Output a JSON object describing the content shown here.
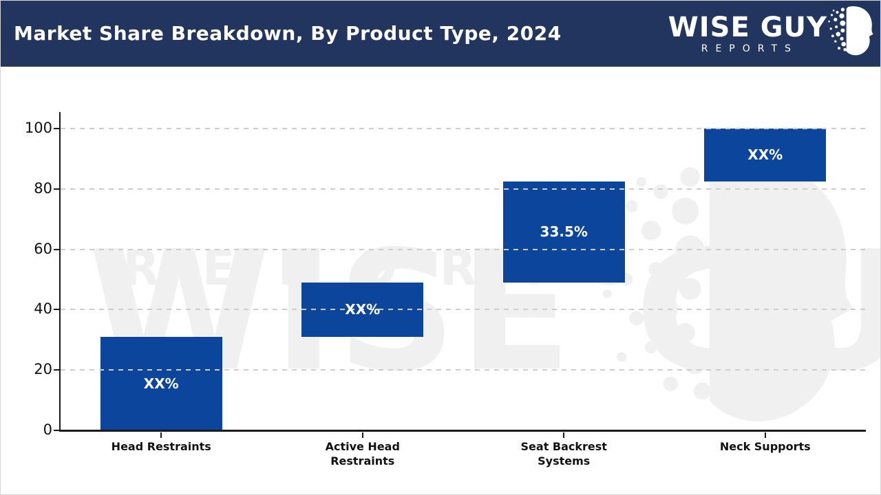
{
  "header": {
    "title": "Market Share Breakdown, By Product Type, 2024",
    "logo": {
      "line1": "WISE GUY",
      "line2": "REPORTS"
    }
  },
  "watermark": {
    "line1": "WISE GUY",
    "line2": "REPORTS"
  },
  "colors": {
    "header_bg": "#22355e",
    "bar": "#0c459c",
    "gridline": "#cdcdcd",
    "axis": "#1a1a1a",
    "watermark": "#f0f0f0"
  },
  "chart_data": {
    "type": "bar",
    "subtype": "waterfall",
    "title": "Market Share Breakdown, By Product Type, 2024",
    "categories": [
      "Head Restraints",
      "Active Head\nRestraints",
      "Seat Backrest\nSystems",
      "Neck Supports"
    ],
    "segments": [
      {
        "category": "Head Restraints",
        "start": 0,
        "end": 31,
        "value": 31,
        "label": "XX%"
      },
      {
        "category": "Active Head Restraints",
        "start": 31,
        "end": 49,
        "value": 18,
        "label": "XX%"
      },
      {
        "category": "Seat Backrest Systems",
        "start": 49,
        "end": 82.5,
        "value": 33.5,
        "label": "33.5%"
      },
      {
        "category": "Neck Supports",
        "start": 82.5,
        "end": 100,
        "value": 17.5,
        "label": "XX%"
      }
    ],
    "yticks": [
      0,
      20,
      40,
      60,
      80,
      100
    ],
    "ylim": [
      0,
      100
    ],
    "xlabel": "",
    "ylabel": "",
    "grid": "horizontal-dashed",
    "legend": "none",
    "bar_color": "#0c459c"
  }
}
